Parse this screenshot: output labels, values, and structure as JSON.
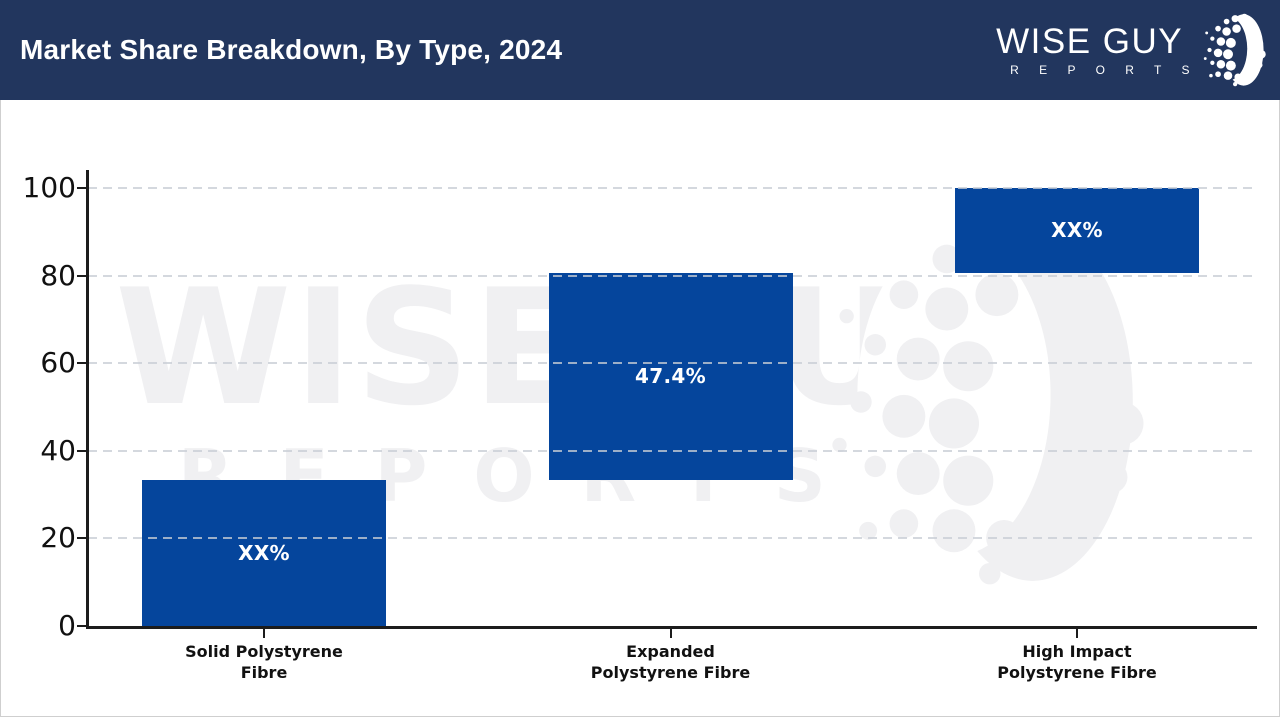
{
  "header": {
    "title": "Market Share Breakdown, By Type, 2024",
    "logo": {
      "line1": "WISE GUY",
      "line2": "R E P O R T S"
    }
  },
  "watermark": {
    "line1": "WISE GUY",
    "line2": "REPORTS"
  },
  "colors": {
    "header_bg": "#22365E",
    "bar_fill": "#05459C",
    "axis": "#1c1c1c",
    "gridline": "#c8cdd5",
    "watermark": "#f0f0f2",
    "tick_text": "#111111",
    "value_text": "#ffffff"
  },
  "chart_data": {
    "type": "bar",
    "subtype": "waterfall-stacked-percentage",
    "title": "Market Share Breakdown, By Type, 2024",
    "categories": [
      "Solid Polystyrene\nFibre",
      "Expanded\nPolystyrene Fibre",
      "High Impact\nPolystyrene Fibre"
    ],
    "bars": [
      {
        "category": "Solid Polystyrene Fibre",
        "label": "XX%",
        "start": 0,
        "end": 33.3
      },
      {
        "category": "Expanded Polystyrene Fibre",
        "label": "47.4%",
        "start": 33.3,
        "end": 80.7
      },
      {
        "category": "High Impact Polystyrene Fibre",
        "label": "XX%",
        "start": 80.7,
        "end": 100
      }
    ],
    "xlabel": "",
    "ylabel": "",
    "ylim": [
      0,
      100
    ],
    "yticks": [
      0,
      20,
      40,
      60,
      80,
      100
    ],
    "grid": "horizontal-dashed",
    "legend": null
  }
}
